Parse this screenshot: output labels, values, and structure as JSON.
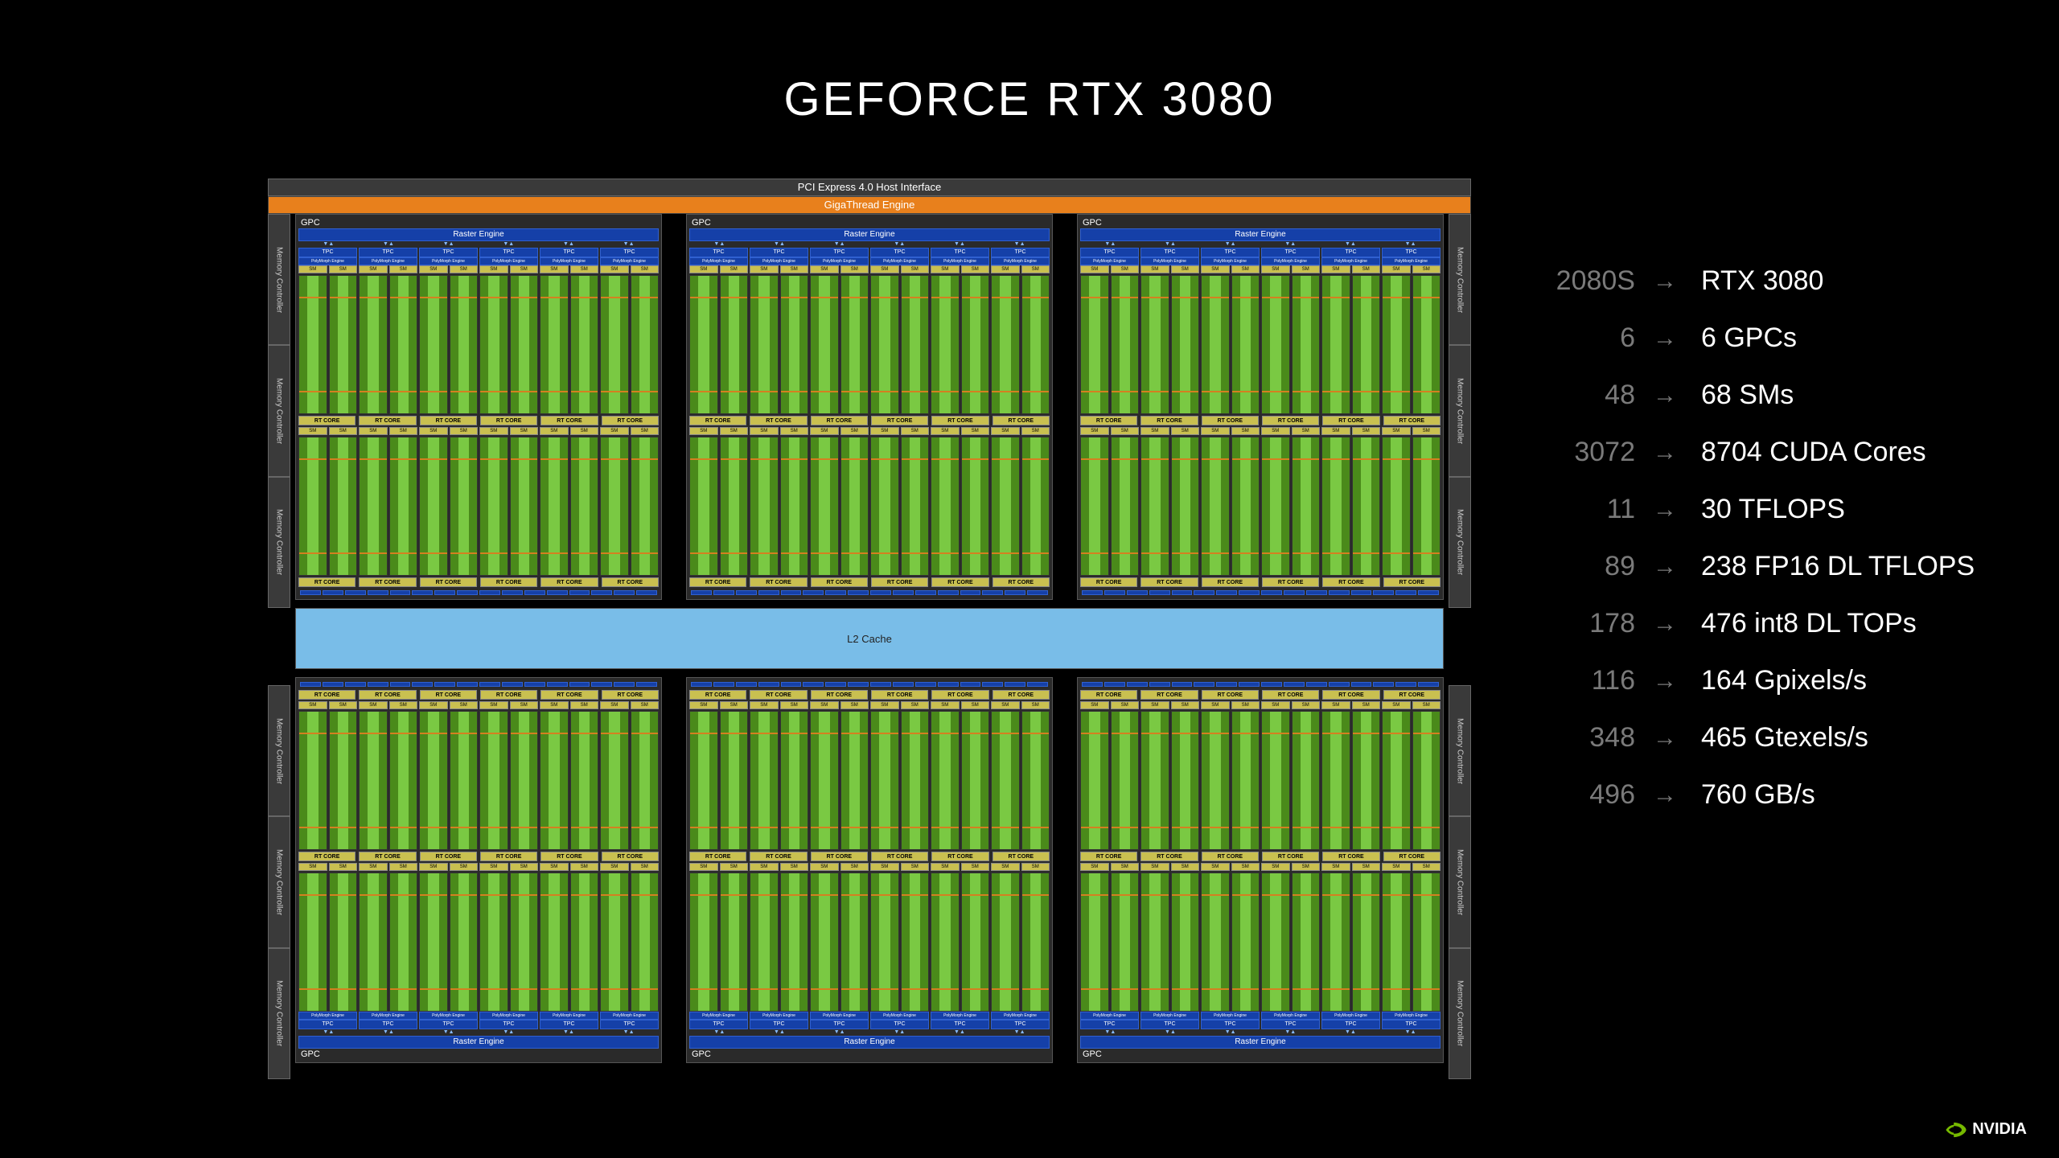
{
  "title": "GEFORCE RTX 3080",
  "logo_text": "NVIDIA",
  "diagram": {
    "pci_label": "PCI Express 4.0 Host Interface",
    "giga_label": "GigaThread Engine",
    "mem_ctrl_label": "Memory Controller",
    "gpc_label": "GPC",
    "raster_label": "Raster Engine",
    "tpc_label": "TPC",
    "poly_label": "PolyMorph Engine",
    "sm_label": "SM",
    "rt_label": "RT CORE",
    "l2_label": "L2 Cache",
    "colors": {
      "background": "#000000",
      "pci_bg": "#3a3a3a",
      "giga_bg": "#e8801c",
      "raster_bg": "#1540a8",
      "sm_green": "#7ac943",
      "sm_dark_green": "#4a8a1a",
      "rt_yellow": "#c9c050",
      "l2_blue": "#79bde8",
      "mem_bg": "#3a3a3a"
    },
    "layout": {
      "gpcs_per_row": 3,
      "gpc_rows": 2,
      "tpcs_per_gpc": 6,
      "mem_controllers_per_side": 6,
      "rops_per_gpc": 16
    }
  },
  "specs": {
    "header_old": "2080S",
    "header_new": "RTX 3080",
    "rows": [
      {
        "old": "6",
        "new": "6 GPCs"
      },
      {
        "old": "48",
        "new": "68 SMs"
      },
      {
        "old": "3072",
        "new": "8704 CUDA Cores"
      },
      {
        "old": "11",
        "new": "30 TFLOPS"
      },
      {
        "old": "89",
        "new": "238 FP16 DL TFLOPS"
      },
      {
        "old": "178",
        "new": "476 int8 DL TOPs"
      },
      {
        "old": "116",
        "new": "164 Gpixels/s"
      },
      {
        "old": "348",
        "new": "465 Gtexels/s"
      },
      {
        "old": "496",
        "new": "760 GB/s"
      }
    ],
    "arrow": "→",
    "old_color": "#7a7a7a",
    "new_color": "#ffffff",
    "fontsize": 34
  }
}
